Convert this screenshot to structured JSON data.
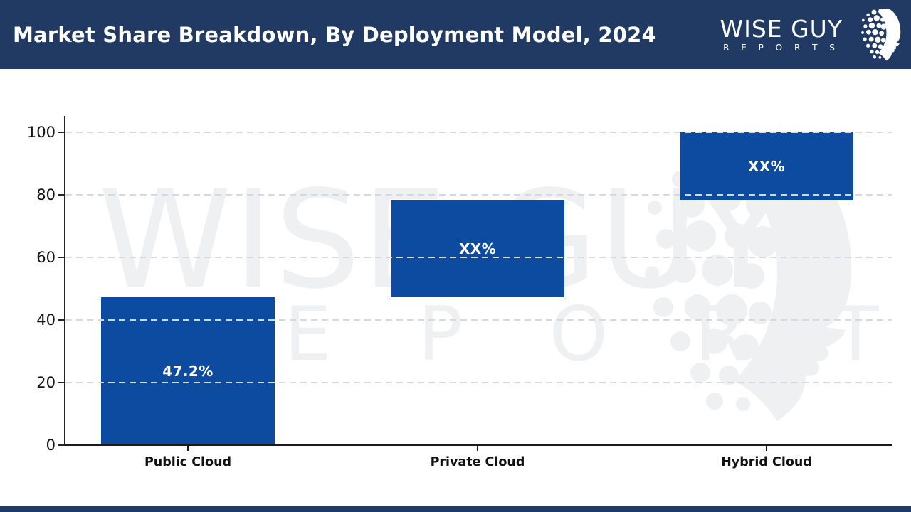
{
  "header": {
    "title": "Market Share Breakdown, By Deployment Model, 2024",
    "logo": {
      "wordmark": "WISE GUY",
      "subtext": "R E P O R T S"
    }
  },
  "watermark": {
    "wordmark": "WISE GUY",
    "subtext": "R E P O R T S"
  },
  "chart_data": {
    "type": "bar",
    "subtype": "floating-segment-breakdown",
    "title": "Market Share Breakdown, By Deployment Model, 2024",
    "categories": [
      "Public Cloud",
      "Private Cloud",
      "Hybrid Cloud"
    ],
    "segments": [
      {
        "category": "Public Cloud",
        "start": 0,
        "end": 47.2,
        "label": "47.2%"
      },
      {
        "category": "Private Cloud",
        "start": 47.2,
        "end": 78.4,
        "label": "XX%"
      },
      {
        "category": "Hybrid Cloud",
        "start": 78.4,
        "end": 100,
        "label": "XX%"
      }
    ],
    "ylim": [
      0,
      100
    ],
    "yticks": [
      0,
      20,
      40,
      60,
      80,
      100
    ],
    "xlabel": "",
    "ylabel": "",
    "grid": {
      "horizontal": true,
      "style": "dashed"
    },
    "legend": "none",
    "colors": {
      "bar": "#0C4BA0",
      "bar_label": "#FFFFFF",
      "header_bg": "#213A64",
      "grid_line": "#D7D9DC",
      "axis": "#1A1A1A",
      "tick_text": "#111111",
      "watermark": "#EFF0F2"
    }
  }
}
